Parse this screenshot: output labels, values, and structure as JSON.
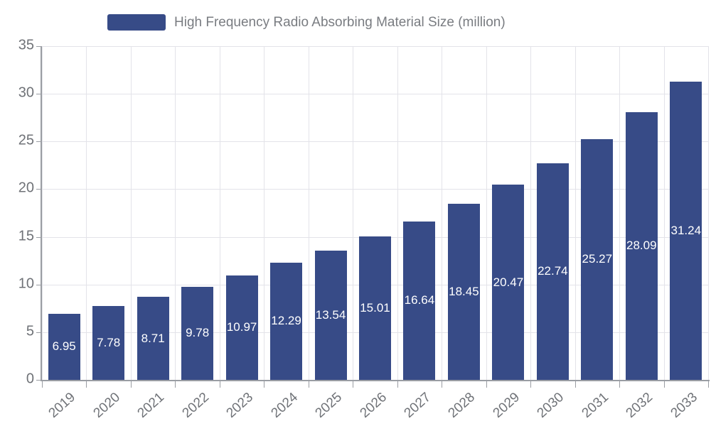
{
  "legend": {
    "label": "High Frequency Radio Absorbing Material Size (million)",
    "swatch_color": "#374B87"
  },
  "chart_data": {
    "type": "bar",
    "title": "High Frequency Radio Absorbing Material Size (million)",
    "categories": [
      "2019",
      "2020",
      "2021",
      "2022",
      "2023",
      "2024",
      "2025",
      "2026",
      "2027",
      "2028",
      "2029",
      "2030",
      "2031",
      "2032",
      "2033"
    ],
    "values": [
      6.95,
      7.78,
      8.71,
      9.78,
      10.97,
      12.29,
      13.54,
      15.01,
      16.64,
      18.45,
      20.47,
      22.74,
      25.27,
      28.09,
      31.24
    ],
    "value_labels": [
      "6.95",
      "7.78",
      "8.71",
      "9.78",
      "10.97",
      "12.29",
      "13.54",
      "15.01",
      "16.64",
      "18.45",
      "20.47",
      "22.74",
      "25.27",
      "28.09",
      "31.24"
    ],
    "xlabel": "",
    "ylabel": "",
    "ylim": [
      0,
      35
    ],
    "yticks": [
      0,
      5,
      10,
      15,
      20,
      25,
      30,
      35
    ],
    "grid": true,
    "legend_position": "top",
    "bar_color": "#374B87",
    "value_label_color": "#ffffff",
    "axis_label_color": "#6f7277",
    "gridline_color": "#e3e3e9",
    "axis_line_color": "#9a9da3",
    "background_color": "#ffffff"
  }
}
